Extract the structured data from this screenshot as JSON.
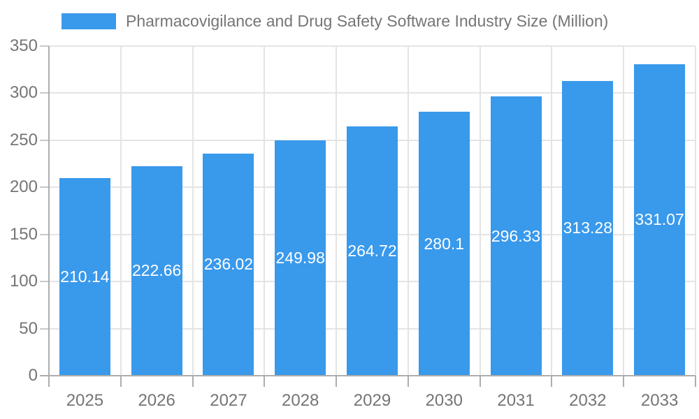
{
  "legend": {
    "label": "Pharmacovigilance and Drug Safety Software Industry Size (Million)"
  },
  "chart_data": {
    "type": "bar",
    "title": "",
    "xlabel": "",
    "ylabel": "",
    "categories": [
      "2025",
      "2026",
      "2027",
      "2028",
      "2029",
      "2030",
      "2031",
      "2032",
      "2033"
    ],
    "values": [
      210.14,
      222.66,
      236.02,
      249.98,
      264.72,
      280.1,
      296.33,
      313.28,
      331.07
    ],
    "value_labels": [
      "210.14",
      "222.66",
      "236.02",
      "249.98",
      "264.72",
      "280.1",
      "296.33",
      "313.28",
      "331.07"
    ],
    "legend": [
      "Pharmacovigilance and Drug Safety Software Industry Size (Million)"
    ],
    "legend_position": "top-left",
    "ylim": [
      0,
      350
    ],
    "yticks": [
      0,
      50,
      100,
      150,
      200,
      250,
      300,
      350
    ],
    "grid": true,
    "colors": {
      "bar": "#3999EB",
      "value_label_text": "#FFFFFF",
      "axis_line": "#ADADAD",
      "y_tick_mark": "#C9C9C9",
      "gridline": "#E4E4E4",
      "tick_label_text": "#757575",
      "legend_text": "#757575",
      "background": "#FFFFFF"
    }
  }
}
